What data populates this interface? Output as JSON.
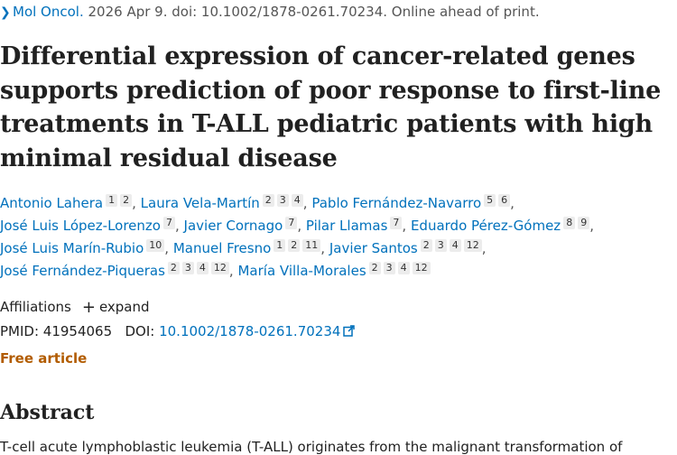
{
  "citation": {
    "journal": "Mol Oncol.",
    "rest": " 2026 Apr 9. doi: 10.1002/1878-0261.70234. Online ahead of print."
  },
  "title": "Differential expression of cancer-related genes supports prediction of poor response to first-line treatments in T-ALL pediatric patients with high minimal residual disease",
  "authors": [
    {
      "name": "Antonio Lahera",
      "affils": [
        "1",
        "2"
      ]
    },
    {
      "name": "Laura Vela-Martín",
      "affils": [
        "2",
        "3",
        "4"
      ]
    },
    {
      "name": "Pablo Fernández-Navarro",
      "affils": [
        "5",
        "6"
      ]
    },
    {
      "name": "José Luis López-Lorenzo",
      "affils": [
        "7"
      ]
    },
    {
      "name": "Javier Cornago",
      "affils": [
        "7"
      ]
    },
    {
      "name": "Pilar Llamas",
      "affils": [
        "7"
      ]
    },
    {
      "name": "Eduardo Pérez-Gómez",
      "affils": [
        "8",
        "9"
      ]
    },
    {
      "name": "José Luis Marín-Rubio",
      "affils": [
        "10"
      ]
    },
    {
      "name": "Manuel Fresno",
      "affils": [
        "1",
        "2",
        "11"
      ]
    },
    {
      "name": "Javier Santos",
      "affils": [
        "2",
        "3",
        "4",
        "12"
      ]
    },
    {
      "name": "José Fernández-Piqueras",
      "affils": [
        "2",
        "3",
        "4",
        "12"
      ]
    },
    {
      "name": "María Villa-Morales",
      "affils": [
        "2",
        "3",
        "4",
        "12"
      ]
    }
  ],
  "affiliations": {
    "label": "Affiliations",
    "expand_label": "expand"
  },
  "ids": {
    "pmid_label": "PMID:",
    "pmid": "41954065",
    "doi_label": "DOI:",
    "doi": "10.1002/1878-0261.70234"
  },
  "free_article": "Free article",
  "abstract": {
    "heading": "Abstract",
    "text": "T-cell acute lymphoblastic leukemia (T-ALL) originates from the malignant transformation of"
  },
  "colors": {
    "link": "#0071bc",
    "free": "#b25c00"
  }
}
